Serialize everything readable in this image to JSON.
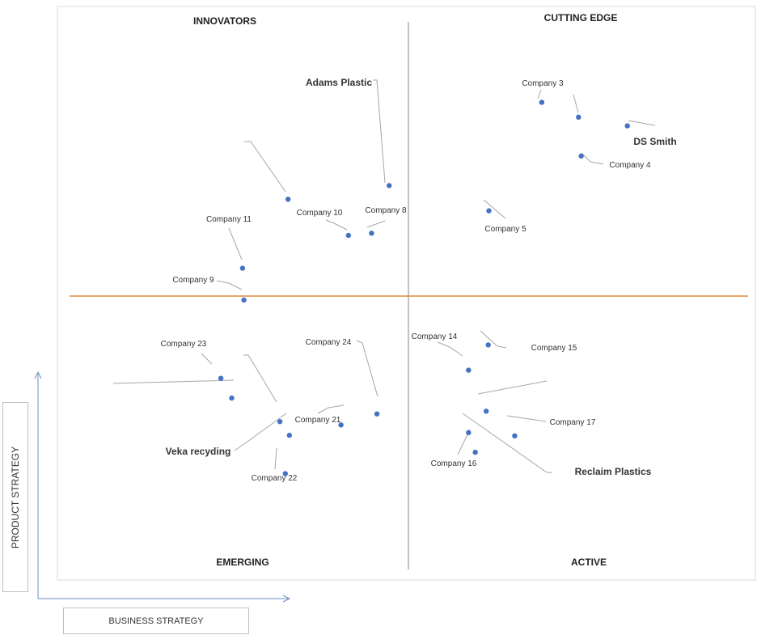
{
  "chart_data": {
    "type": "scatter",
    "xlabel": "BUSINESS STRATEGY",
    "ylabel": "PRODUCT STRATEGY",
    "xlim": [
      0,
      100
    ],
    "ylim": [
      0,
      100
    ],
    "quadrants": {
      "top_left": "INNOVATORS",
      "top_right": "CUTTING EDGE",
      "bottom_left": "EMERGING",
      "bottom_right": "ACTIVE"
    },
    "colors": {
      "point": "#4472c4",
      "divider_horizontal": "#e08a3a",
      "divider_vertical": "#9a9a9a",
      "leader": "#a6a6a6",
      "frame": "#d9d9d9"
    },
    "points": [
      {
        "label": "Adams Plastic",
        "x": 47.1,
        "y": 70.1,
        "bold": true
      },
      {
        "label": "Company 3",
        "x": 69.6,
        "y": 85.3,
        "bold": false
      },
      {
        "label": "",
        "x": 75.0,
        "y": 82.6,
        "bold": false
      },
      {
        "label": "DS Smith",
        "x": 82.2,
        "y": 81.0,
        "bold": true
      },
      {
        "label": "Company 4",
        "x": 75.4,
        "y": 75.5,
        "bold": false
      },
      {
        "label": "Company 5",
        "x": 61.8,
        "y": 65.5,
        "bold": false
      },
      {
        "label": "",
        "x": 32.2,
        "y": 67.6,
        "bold": false
      },
      {
        "label": "Company 10",
        "x": 41.1,
        "y": 61.0,
        "bold": false
      },
      {
        "label": "Company 8",
        "x": 44.5,
        "y": 61.4,
        "bold": false
      },
      {
        "label": "Company 11",
        "x": 25.5,
        "y": 55.0,
        "bold": false
      },
      {
        "label": "Company 9",
        "x": 25.7,
        "y": 49.2,
        "bold": false
      },
      {
        "label": "Company 23",
        "x": 22.3,
        "y": 34.9,
        "bold": false
      },
      {
        "label": "",
        "x": 23.9,
        "y": 31.3,
        "bold": false
      },
      {
        "label": "",
        "x": 31.0,
        "y": 27.0,
        "bold": false
      },
      {
        "label": "Company 21",
        "x": 40.0,
        "y": 26.4,
        "bold": false
      },
      {
        "label": "Veka recyding",
        "x": 32.4,
        "y": 24.5,
        "bold": true
      },
      {
        "label": "Company 24",
        "x": 45.3,
        "y": 28.4,
        "bold": false
      },
      {
        "label": "Company 22",
        "x": 31.8,
        "y": 17.5,
        "bold": false
      },
      {
        "label": "Company 14",
        "x": 58.8,
        "y": 36.4,
        "bold": false
      },
      {
        "label": "Company 15",
        "x": 61.7,
        "y": 41.0,
        "bold": false
      },
      {
        "label": "",
        "x": 61.4,
        "y": 28.9,
        "bold": false
      },
      {
        "label": "Reclaim Plastics",
        "x": 58.8,
        "y": 25.0,
        "bold": true
      },
      {
        "label": "Company 17",
        "x": 65.6,
        "y": 24.4,
        "bold": false
      },
      {
        "label": "Company 16",
        "x": 59.8,
        "y": 21.4,
        "bold": false
      }
    ]
  }
}
